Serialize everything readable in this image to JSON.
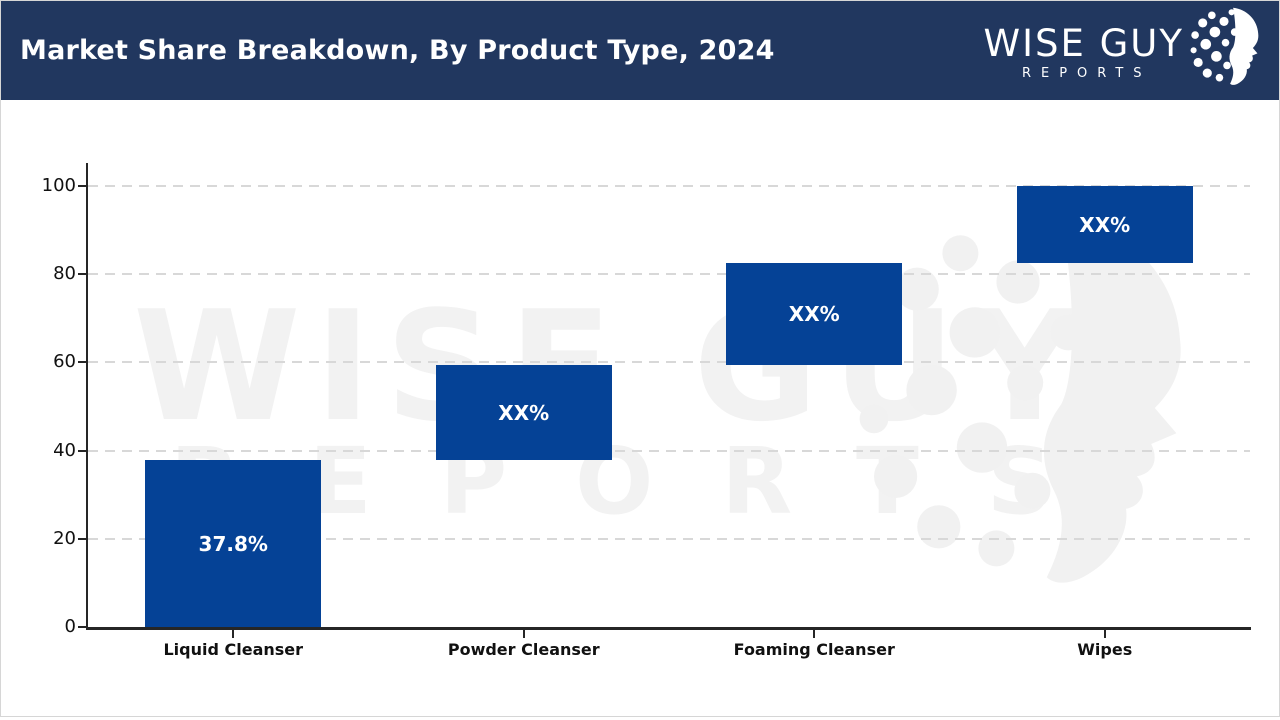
{
  "header": {
    "title": "Market Share Breakdown, By Product Type, 2024",
    "background_color": "#21375F",
    "logo": {
      "name": "WISE GUY",
      "tagline": "REPORTS"
    }
  },
  "watermark": {
    "line1": "WISE GUY",
    "line2": "REPORTS"
  },
  "chart_data": {
    "type": "bar",
    "subtype": "waterfall",
    "title": "Market Share Breakdown, By Product Type, 2024",
    "categories": [
      "Liquid Cleanser",
      "Powder Cleanser",
      "Foaming Cleanser",
      "Wipes"
    ],
    "segments": [
      {
        "from": 0,
        "to": 37.8,
        "label": "37.8%"
      },
      {
        "from": 37.8,
        "to": 59.3,
        "label": "XX%"
      },
      {
        "from": 59.3,
        "to": 82.5,
        "label": "XX%"
      },
      {
        "from": 82.5,
        "to": 100,
        "label": "XX%"
      }
    ],
    "xlabel": "",
    "ylabel": "",
    "ylim": [
      0,
      105
    ],
    "yticks": [
      0,
      20,
      40,
      60,
      80,
      100
    ],
    "grid": "horizontal-dashed",
    "legend": "none",
    "bar_color": "#054296",
    "label_color": "#ffffff"
  }
}
